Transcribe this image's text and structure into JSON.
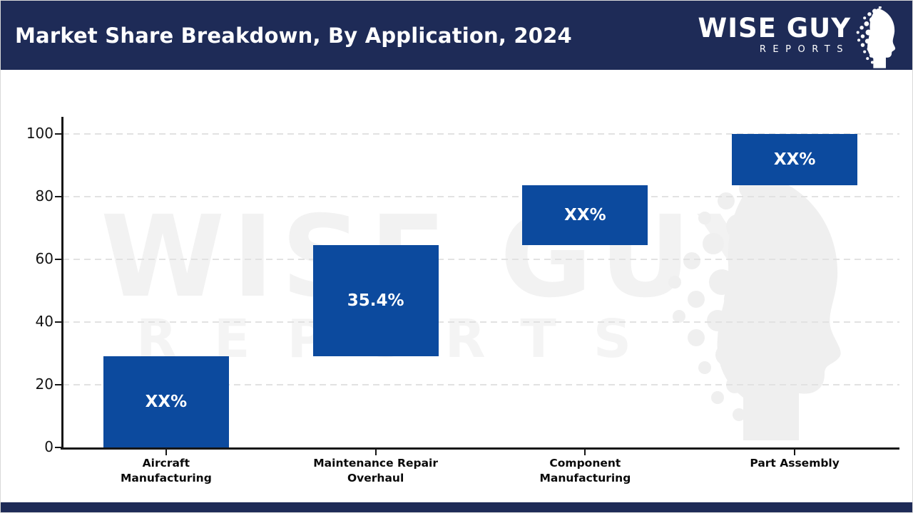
{
  "header": {
    "title": "Market Share Breakdown, By Application, 2024",
    "bg_color": "#1e2b57",
    "logo": {
      "wise_guy": "WISE GUY",
      "reports": "REPORTS"
    }
  },
  "footer": {
    "bg_color": "#1e2b57"
  },
  "watermark": {
    "wise_guy": "WISE GUY",
    "reports": "REPORTS"
  },
  "chart_data": {
    "type": "bar",
    "subtype": "waterfall",
    "title": "Market Share Breakdown, By Application, 2024",
    "categories": [
      "Aircraft Manufacturing",
      "Maintenance Repair Overhaul",
      "Component Manufacturing",
      "Part Assembly"
    ],
    "category_lines": [
      [
        "Aircraft",
        "Manufacturing"
      ],
      [
        "Maintenance Repair",
        "Overhaul"
      ],
      [
        "Component",
        "Manufacturing"
      ],
      [
        "Part Assembly"
      ]
    ],
    "segments": [
      {
        "category": "Aircraft Manufacturing",
        "start": 0,
        "end": 29.2,
        "value": 29.2,
        "value_label": "XX%"
      },
      {
        "category": "Maintenance Repair Overhaul",
        "start": 29.2,
        "end": 64.6,
        "value": 35.4,
        "value_label": "35.4%"
      },
      {
        "category": "Component Manufacturing",
        "start": 64.6,
        "end": 83.6,
        "value": 19.0,
        "value_label": "XX%"
      },
      {
        "category": "Part Assembly",
        "start": 83.6,
        "end": 100,
        "value": 16.4,
        "value_label": "XX%"
      }
    ],
    "y_ticks": [
      0,
      20,
      40,
      60,
      80,
      100
    ],
    "ylim": [
      0,
      105
    ],
    "xlabel": "",
    "ylabel": "",
    "bar_color": "#0c4a9e",
    "grid": "horizontal-dashed",
    "legend": "none"
  }
}
